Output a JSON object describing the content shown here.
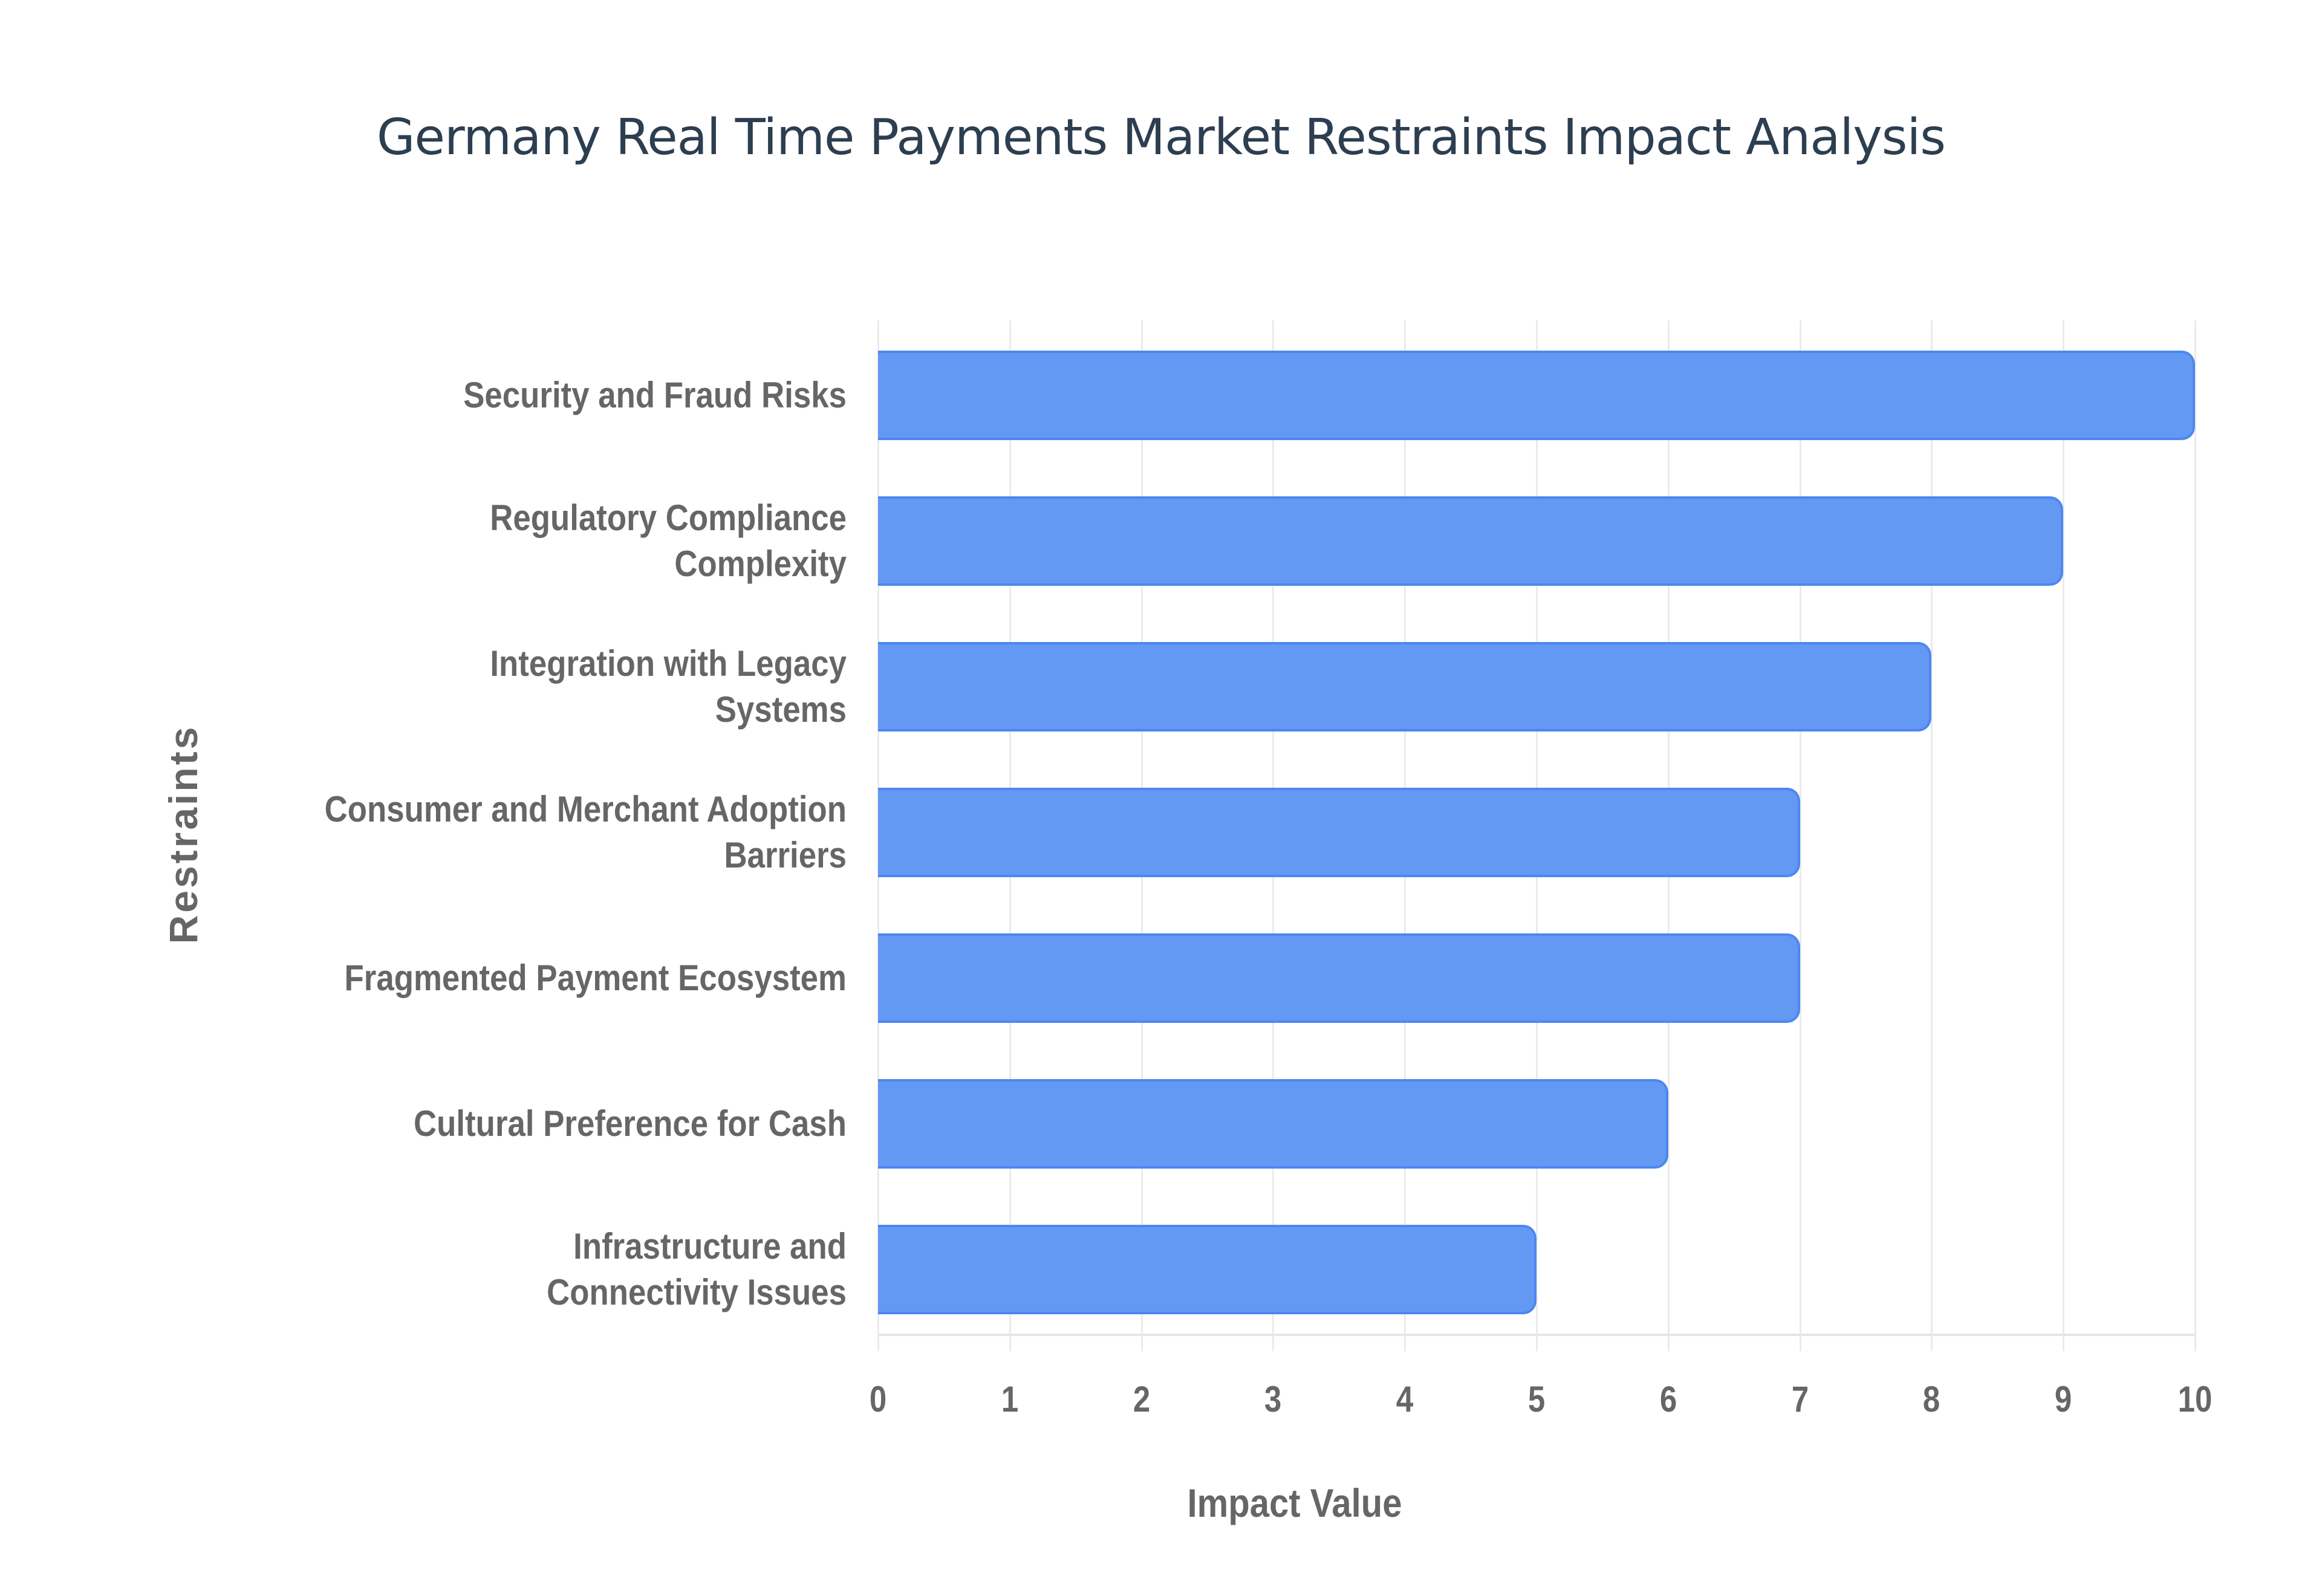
{
  "title": "Germany Real Time Payments Market Restraints Impact Analysis",
  "colors": {
    "bar_fill": "#6399f3",
    "bar_border": "#4d87ef",
    "title": "#2c3e50",
    "axis_text": "#666666",
    "grid": "#ebebeb"
  },
  "axes": {
    "x_title": "Impact Value",
    "y_title": "Restraints",
    "x_ticks": [
      "0",
      "1",
      "2",
      "3",
      "4",
      "5",
      "6",
      "7",
      "8",
      "9",
      "10"
    ]
  },
  "bars": [
    {
      "label_lines": [
        "Security and Fraud Risks"
      ],
      "value": 10
    },
    {
      "label_lines": [
        "Regulatory Compliance",
        "Complexity"
      ],
      "value": 9
    },
    {
      "label_lines": [
        "Integration with Legacy",
        "Systems"
      ],
      "value": 8
    },
    {
      "label_lines": [
        "Consumer and Merchant Adoption",
        "Barriers"
      ],
      "value": 7
    },
    {
      "label_lines": [
        "Fragmented Payment Ecosystem"
      ],
      "value": 7
    },
    {
      "label_lines": [
        "Cultural Preference for Cash"
      ],
      "value": 6
    },
    {
      "label_lines": [
        "Infrastructure and",
        "Connectivity Issues"
      ],
      "value": 5
    }
  ],
  "chart_data": {
    "type": "bar",
    "orientation": "horizontal",
    "title": "Germany Real Time Payments Market Restraints Impact Analysis",
    "xlabel": "Impact Value",
    "ylabel": "Restraints",
    "categories": [
      "Security and Fraud Risks",
      "Regulatory Compliance Complexity",
      "Integration with Legacy Systems",
      "Consumer and Merchant Adoption Barriers",
      "Fragmented Payment Ecosystem",
      "Cultural Preference for Cash",
      "Infrastructure and Connectivity Issues"
    ],
    "values": [
      10,
      9,
      8,
      7,
      7,
      6,
      5
    ],
    "xlim": [
      0,
      10
    ],
    "x_ticks": [
      0,
      1,
      2,
      3,
      4,
      5,
      6,
      7,
      8,
      9,
      10
    ],
    "grid": {
      "vertical": true,
      "horizontal": false
    },
    "legend": null,
    "color": "#6399f3"
  }
}
